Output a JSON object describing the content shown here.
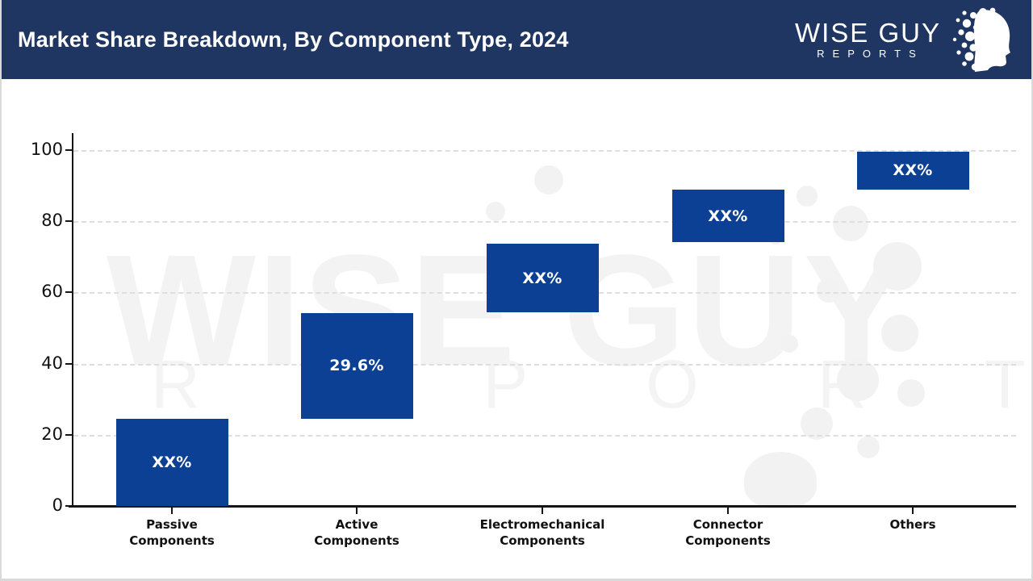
{
  "header": {
    "title": "Market Share Breakdown, By Component Type, 2024",
    "logo": {
      "line1": "WISE GUY",
      "line2": "REPORTS"
    }
  },
  "watermark": {
    "line1": "WISE GUY",
    "line2": "R E P O R T S"
  },
  "colors": {
    "header_bg": "#1f3562",
    "bar": "#0c4094",
    "grid": "#dedede",
    "axis": "#151515",
    "bar_label_text": "#ffffff"
  },
  "chart_data": {
    "type": "bar",
    "variant": "floating-waterfall",
    "title": "Market Share Breakdown, By Component Type, 2024",
    "categories": [
      "Passive Components",
      "Active Components",
      "Electromechanical Components",
      "Connector Components",
      "Others"
    ],
    "bars": [
      {
        "category": "Passive Components",
        "start": 0,
        "end": 24.5,
        "label": "XX%"
      },
      {
        "category": "Active Components",
        "start": 24.6,
        "end": 54.2,
        "label": "29.6%"
      },
      {
        "category": "Electromechanical Components",
        "start": 54.4,
        "end": 73.7,
        "label": "XX%"
      },
      {
        "category": "Connector Components",
        "start": 74.1,
        "end": 88.9,
        "label": "XX%"
      },
      {
        "category": "Others",
        "start": 89.0,
        "end": 99.5,
        "label": "XX%"
      }
    ],
    "yticks": [
      0,
      20,
      40,
      60,
      80,
      100
    ],
    "ylim": [
      0,
      104.5
    ],
    "xlabel": "",
    "ylabel": "",
    "grid": "dashed-horizontal",
    "legend": "none"
  }
}
